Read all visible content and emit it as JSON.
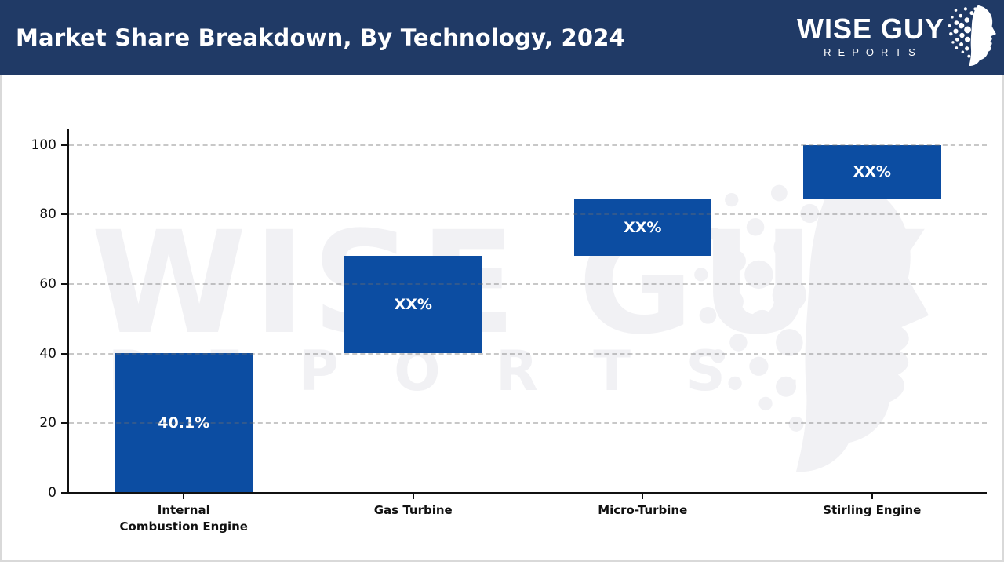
{
  "header": {
    "title": "Market Share Breakdown, By Technology, 2024",
    "bg_color": "#203A66",
    "logo": {
      "line1": "WISE GUY",
      "line2": "REPORTS"
    }
  },
  "watermark": {
    "line1": "WISE GUY",
    "line2": "R E P O R T S ."
  },
  "chart_data": {
    "type": "bar",
    "variant": "waterfall",
    "title": "Market Share Breakdown, By Technology, 2024",
    "categories": [
      "Internal\nCombustion Engine",
      "Gas Turbine",
      "Micro-Turbine",
      "Stirling Engine"
    ],
    "series": [
      {
        "name": "Market Share (%)",
        "segments": [
          {
            "from": 0,
            "to": 40.1,
            "label": "40.1%"
          },
          {
            "from": 40.1,
            "to": 68,
            "label": "XX%"
          },
          {
            "from": 68,
            "to": 84.5,
            "label": "XX%"
          },
          {
            "from": 84.5,
            "to": 100,
            "label": "XX%"
          }
        ]
      }
    ],
    "yticks": [
      0,
      20,
      40,
      60,
      80,
      100
    ],
    "ylim": [
      0,
      104.6
    ],
    "xlabel": "",
    "ylabel": "",
    "grid": "horizontal-dashed",
    "grid_over_bars": true,
    "legend": "none",
    "bar_color": "#0C4DA2",
    "bar_label_color": "#FFFFFF",
    "axis_color": "#111111"
  }
}
